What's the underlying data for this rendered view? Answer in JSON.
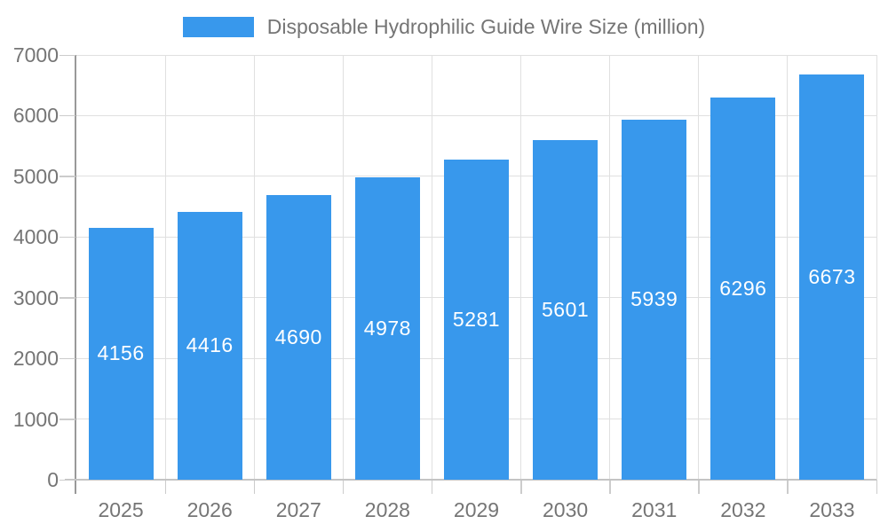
{
  "legend": {
    "label": "Disposable Hydrophilic Guide Wire Size (million)"
  },
  "colors": {
    "bar": "#3898EC",
    "value_label": "#FFFFFF",
    "axis_text": "#757575",
    "grid": "#E0E0E0",
    "y_axis_line": "#999999",
    "x_axis_line": "#C4C4C4"
  },
  "chart_data": {
    "type": "bar",
    "title": "Disposable Hydrophilic Guide Wire Size (million)",
    "series_name": "Disposable Hydrophilic Guide Wire Size (million)",
    "categories": [
      "2025",
      "2026",
      "2027",
      "2028",
      "2029",
      "2030",
      "2031",
      "2032",
      "2033"
    ],
    "values": [
      4156,
      4416,
      4690,
      4978,
      5281,
      5601,
      5939,
      6296,
      6673
    ],
    "xlabel": "",
    "ylabel": "",
    "ylim": [
      0,
      7000
    ],
    "ytick_step": 1000,
    "yticks": [
      0,
      1000,
      2000,
      3000,
      4000,
      5000,
      6000,
      7000
    ],
    "grid": true,
    "legend_position": "top",
    "value_labels": "inside-center"
  }
}
